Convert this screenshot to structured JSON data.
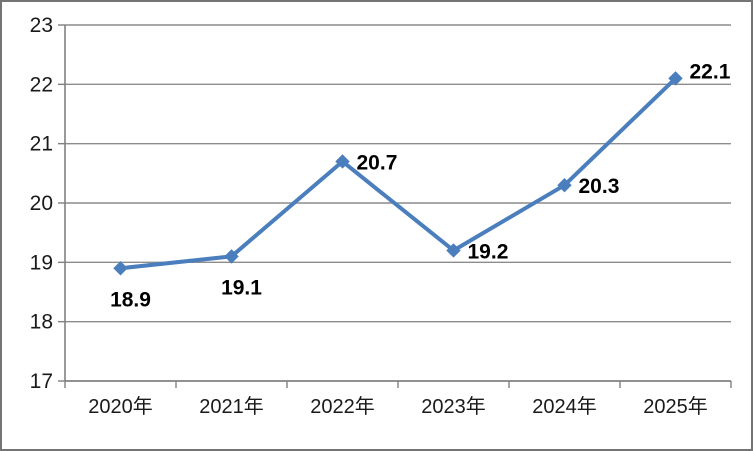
{
  "chart_data": {
    "type": "line",
    "title": "",
    "xlabel": "",
    "ylabel": "",
    "categories": [
      "2020年",
      "2021年",
      "2022年",
      "2023年",
      "2024年",
      "2025年"
    ],
    "values": [
      18.9,
      19.1,
      20.7,
      19.2,
      20.3,
      22.1
    ],
    "data_labels": [
      "18.9",
      "19.1",
      "20.7",
      "19.2",
      "20.3",
      "22.1"
    ],
    "y_ticks": [
      17,
      18,
      19,
      20,
      21,
      22,
      23
    ],
    "ylim": [
      17,
      23
    ],
    "grid": "horizontal",
    "legend": "none",
    "marker": "diamond",
    "label_placement": [
      "below",
      "below",
      "right",
      "right",
      "right",
      "right-up"
    ],
    "colors": {
      "line": "#4A7EBD",
      "marker": "#4A7EBD",
      "gridline": "#8C8C8C",
      "axis": "#808080",
      "tick_label": "#1A1A1A",
      "data_label": "#000000",
      "background": "#FFFFFF",
      "frame_border": "#747474"
    }
  }
}
